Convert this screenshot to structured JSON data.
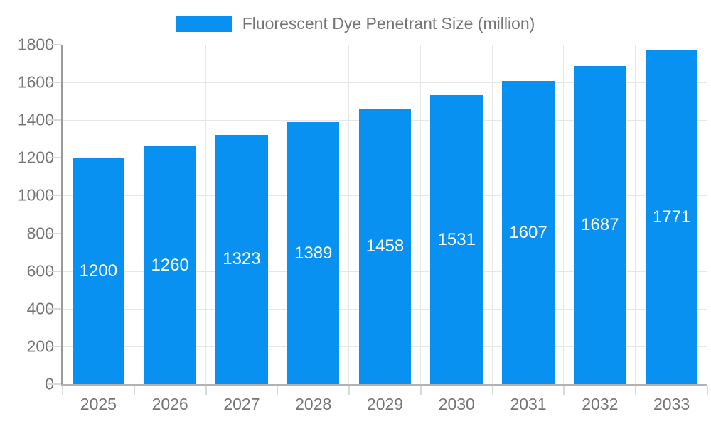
{
  "legend": {
    "label": "Fluorescent Dye Penetrant Size (million)"
  },
  "chart_data": {
    "type": "bar",
    "title": "Fluorescent Dye Penetrant Size (million)",
    "categories": [
      "2025",
      "2026",
      "2027",
      "2028",
      "2029",
      "2030",
      "2031",
      "2032",
      "2033"
    ],
    "values": [
      1200,
      1260,
      1323,
      1389,
      1458,
      1531,
      1607,
      1687,
      1771
    ],
    "xlabel": "",
    "ylabel": "",
    "ylim": [
      0,
      1800
    ],
    "yticks": [
      0,
      200,
      400,
      600,
      800,
      1000,
      1200,
      1400,
      1600,
      1800
    ],
    "grid": true,
    "legend_position": "top",
    "bar_color": "#0991F2",
    "value_label_color": "#ffffff",
    "axis_text_color": "#757575",
    "gridline_color": "#E6E6E6",
    "tick_color": "#D9D9D9",
    "axis_line_color": "#9A9A9A",
    "baseline_color": "#B3B3B3"
  }
}
